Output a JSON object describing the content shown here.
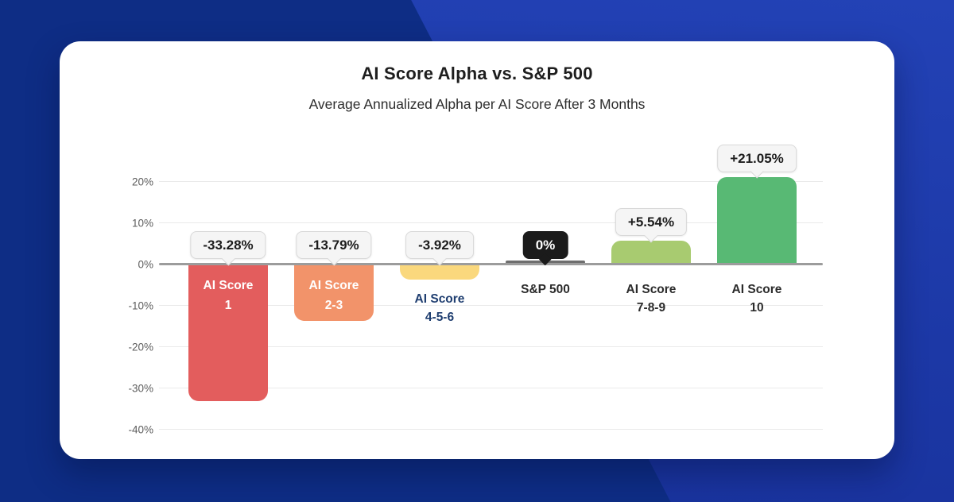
{
  "theme": {
    "background": "#0e2d85",
    "background_accent": "#1f3dae",
    "card": "#ffffff",
    "gridline": "#eaeaea",
    "axis_line": "#9c9c9c",
    "tooltip_light_bg": "#f5f5f5",
    "tooltip_dark_bg": "#1b1b1b"
  },
  "chart_data": {
    "type": "bar",
    "title": "AI Score Alpha vs. S&P 500",
    "subtitle": "Average Annualized Alpha per AI Score After 3 Months",
    "unit": "%",
    "ylim": [
      -40,
      25
    ],
    "grid": true,
    "legend": "none",
    "y_axis": {
      "tick_values": [
        20,
        10,
        0,
        -10,
        -20,
        -30,
        -40
      ],
      "tick_labels": [
        "20%",
        "10%",
        "0%",
        "-10%",
        "-20%",
        "-30%",
        "-40%"
      ]
    },
    "categories": [
      "AI Score 1",
      "AI Score 2-3",
      "AI Score 4-5-6",
      "S&P 500",
      "AI Score 7-8-9",
      "AI Score 10"
    ],
    "values": [
      -33.28,
      -13.79,
      -3.92,
      0,
      5.54,
      21.05
    ],
    "bars": [
      {
        "category": "AI Score 1",
        "label_lines": [
          "AI Score",
          "1"
        ],
        "value": -33.28,
        "value_label": "-33.28%",
        "color": "#E35D5D",
        "label_placement": "inside",
        "label_color": "#ffffff",
        "tooltip_theme": "light"
      },
      {
        "category": "AI Score 2-3",
        "label_lines": [
          "AI Score",
          "2-3"
        ],
        "value": -13.79,
        "value_label": "-13.79%",
        "color": "#F2936A",
        "label_placement": "inside",
        "label_color": "#ffffff",
        "tooltip_theme": "light"
      },
      {
        "category": "AI Score 4-5-6",
        "label_lines": [
          "AI Score",
          "4-5-6"
        ],
        "value": -3.92,
        "value_label": "-3.92%",
        "color": "#FAD87D",
        "label_placement": "below-bar",
        "label_color": "#1F3E70",
        "tooltip_theme": "light"
      },
      {
        "category": "S&P 500",
        "label_lines": [
          "S&P 500"
        ],
        "value": 0,
        "value_label": "0%",
        "color": "#6E6E6E",
        "label_placement": "below-axis",
        "label_color": "#2B2B2B",
        "tooltip_theme": "dark"
      },
      {
        "category": "AI Score 7-8-9",
        "label_lines": [
          "AI Score",
          "7-8-9"
        ],
        "value": 5.54,
        "value_label": "+5.54%",
        "color": "#A8CB70",
        "label_placement": "below-axis",
        "label_color": "#2B2B2B",
        "tooltip_theme": "light"
      },
      {
        "category": "AI Score 10",
        "label_lines": [
          "AI Score",
          "10"
        ],
        "value": 21.05,
        "value_label": "+21.05%",
        "color": "#58B974",
        "label_placement": "below-axis",
        "label_color": "#2B2B2B",
        "tooltip_theme": "light"
      }
    ]
  }
}
